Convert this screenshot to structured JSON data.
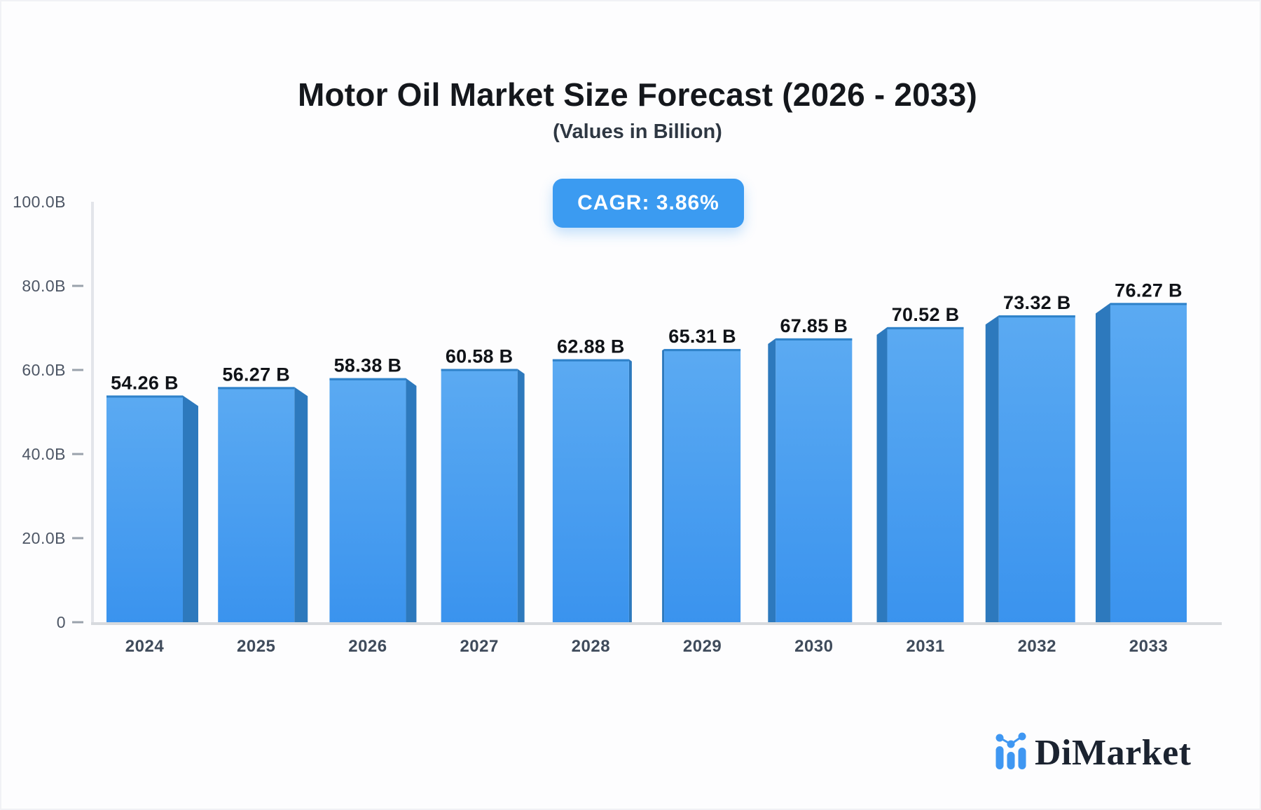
{
  "header": {
    "title": "Motor Oil Market Size Forecast (2026 - 2033)",
    "subtitle": "(Values in Billion)",
    "cagr_badge": "CAGR: 3.86%"
  },
  "chart_data": {
    "type": "bar",
    "style": "3d-perspective",
    "title": "Motor Oil Market Size Forecast (2026 - 2033)",
    "subtitle": "(Values in Billion)",
    "categories": [
      "2024",
      "2025",
      "2026",
      "2027",
      "2028",
      "2029",
      "2030",
      "2031",
      "2032",
      "2033"
    ],
    "values": [
      54.26,
      56.27,
      58.38,
      60.58,
      62.88,
      65.31,
      67.85,
      70.52,
      73.32,
      76.27
    ],
    "value_labels": [
      "54.26 B",
      "56.27 B",
      "58.38 B",
      "60.58 B",
      "62.88 B",
      "65.31 B",
      "67.85 B",
      "70.52 B",
      "73.32 B",
      "76.27 B"
    ],
    "unit": "Billion",
    "cagr_percent": 3.86,
    "xlabel": "",
    "ylabel": "",
    "ylim": [
      0,
      100
    ],
    "y_ticks": [
      {
        "value": 0,
        "label": "0",
        "dash": true
      },
      {
        "value": 20,
        "label": "20.0B",
        "dash": true
      },
      {
        "value": 40,
        "label": "40.0B",
        "dash": true
      },
      {
        "value": 60,
        "label": "60.0B",
        "dash": true
      },
      {
        "value": 80,
        "label": "80.0B",
        "dash": true
      },
      {
        "value": 100,
        "label": "100.0B",
        "dash": false
      }
    ],
    "grid": false,
    "legend": false,
    "colors": {
      "bar_face_top": "#5baaf2",
      "bar_face_bottom": "#3a93ee",
      "bar_side": "#2d79bd",
      "bar_top_edge": "#2f82c9",
      "axis_line": "#e3e5ea",
      "baseline": "#d7dade",
      "tick_dash": "#9aa2ac",
      "tick_label": "#4d5665",
      "x_label": "#3f4b5b",
      "value_label": "#101318",
      "badge_bg": "#3b9bf1",
      "badge_text": "#ffffff"
    }
  },
  "logo": {
    "text": "DiMarket",
    "icon": "mini-bar-chart-icon",
    "text_color": "#1b2330",
    "icon_color": "#3f97f2"
  }
}
